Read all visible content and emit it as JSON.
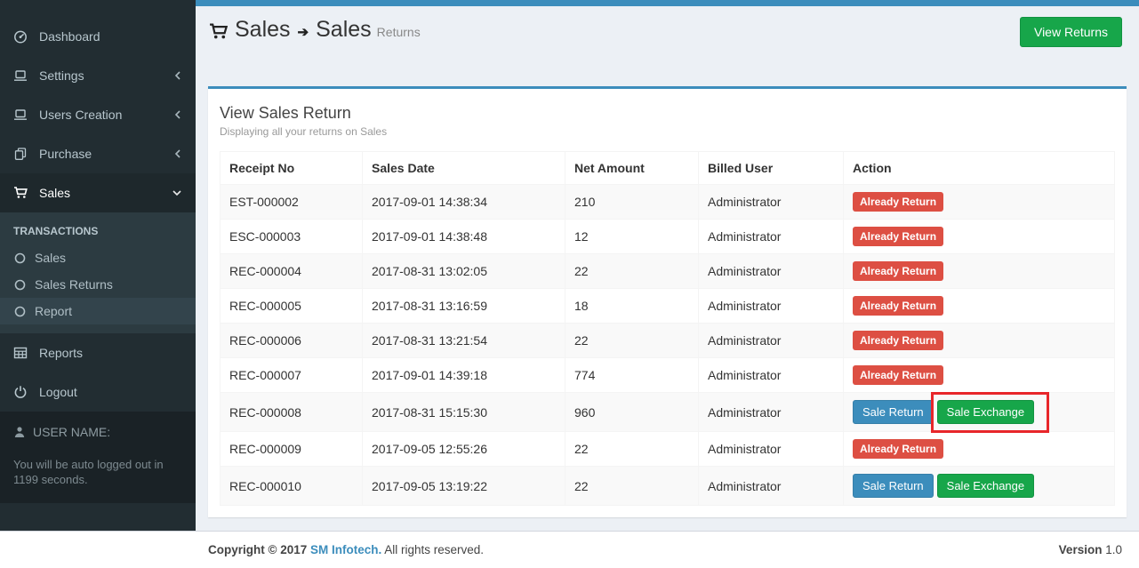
{
  "colors": {
    "accent_blue": "#3c8dbc",
    "success_green": "#17a64a",
    "danger_red": "#dd4f43",
    "annotation_red": "#e8262a",
    "sidebar_bg": "#222d32",
    "sidebar_active_bg": "#1e282c",
    "submenu_bg": "#2c3b41",
    "content_bg": "#ecf0f5"
  },
  "sidebar": {
    "items": [
      {
        "label": "Dashboard",
        "icon": "dashboard-icon"
      },
      {
        "label": "Settings",
        "icon": "laptop-icon",
        "chevron": "left"
      },
      {
        "label": "Users Creation",
        "icon": "laptop-icon",
        "chevron": "left"
      },
      {
        "label": "Purchase",
        "icon": "copy-icon",
        "chevron": "left"
      },
      {
        "label": "Sales",
        "icon": "cart-icon",
        "chevron": "down",
        "active": true
      }
    ],
    "submenu_header": "TRANSACTIONS",
    "submenu": [
      {
        "label": "Sales"
      },
      {
        "label": "Sales Returns"
      },
      {
        "label": "Report"
      }
    ],
    "items_bottom": [
      {
        "label": "Reports",
        "icon": "table-icon"
      },
      {
        "label": "Logout",
        "icon": "power-icon"
      }
    ],
    "user": {
      "label": "USER NAME:",
      "note_line1": "You will be auto logged out in",
      "note_line2": "1199 seconds."
    }
  },
  "header": {
    "title_primary": "Sales",
    "title_secondary": "Sales",
    "title_suffix": "Returns",
    "action_button": "View Returns"
  },
  "panel": {
    "title": "View Sales Return",
    "subtitle": "Displaying all your returns on Sales"
  },
  "actions": {
    "already_return": "Already Return",
    "sale_return": "Sale Return",
    "sale_exchange": "Sale Exchange"
  },
  "table": {
    "columns": [
      "Receipt No",
      "Sales Date",
      "Net Amount",
      "Billed User",
      "Action"
    ],
    "rows": [
      {
        "receipt": "EST-000002",
        "date": "2017-09-01 14:38:34",
        "amount": "210",
        "user": "Administrator",
        "actions": [
          {
            "type": "already_return"
          }
        ]
      },
      {
        "receipt": "ESC-000003",
        "date": "2017-09-01 14:38:48",
        "amount": "12",
        "user": "Administrator",
        "actions": [
          {
            "type": "already_return"
          }
        ]
      },
      {
        "receipt": "REC-000004",
        "date": "2017-08-31 13:02:05",
        "amount": "22",
        "user": "Administrator",
        "actions": [
          {
            "type": "already_return"
          }
        ]
      },
      {
        "receipt": "REC-000005",
        "date": "2017-08-31 13:16:59",
        "amount": "18",
        "user": "Administrator",
        "actions": [
          {
            "type": "already_return"
          }
        ]
      },
      {
        "receipt": "REC-000006",
        "date": "2017-08-31 13:21:54",
        "amount": "22",
        "user": "Administrator",
        "actions": [
          {
            "type": "already_return"
          }
        ]
      },
      {
        "receipt": "REC-000007",
        "date": "2017-09-01 14:39:18",
        "amount": "774",
        "user": "Administrator",
        "actions": [
          {
            "type": "already_return"
          }
        ]
      },
      {
        "receipt": "REC-000008",
        "date": "2017-08-31 15:15:30",
        "amount": "960",
        "user": "Administrator",
        "actions": [
          {
            "type": "sale_return"
          },
          {
            "type": "sale_exchange",
            "highlighted": true
          }
        ]
      },
      {
        "receipt": "REC-000009",
        "date": "2017-09-05 12:55:26",
        "amount": "22",
        "user": "Administrator",
        "actions": [
          {
            "type": "already_return"
          }
        ]
      },
      {
        "receipt": "REC-000010",
        "date": "2017-09-05 13:19:22",
        "amount": "22",
        "user": "Administrator",
        "actions": [
          {
            "type": "sale_return"
          },
          {
            "type": "sale_exchange"
          }
        ]
      }
    ]
  },
  "footer": {
    "copyright_prefix": "Copyright © 2017",
    "company": "SM Infotech.",
    "copyright_suffix": "All rights reserved.",
    "version_label": "Version",
    "version_value": "1.0"
  }
}
